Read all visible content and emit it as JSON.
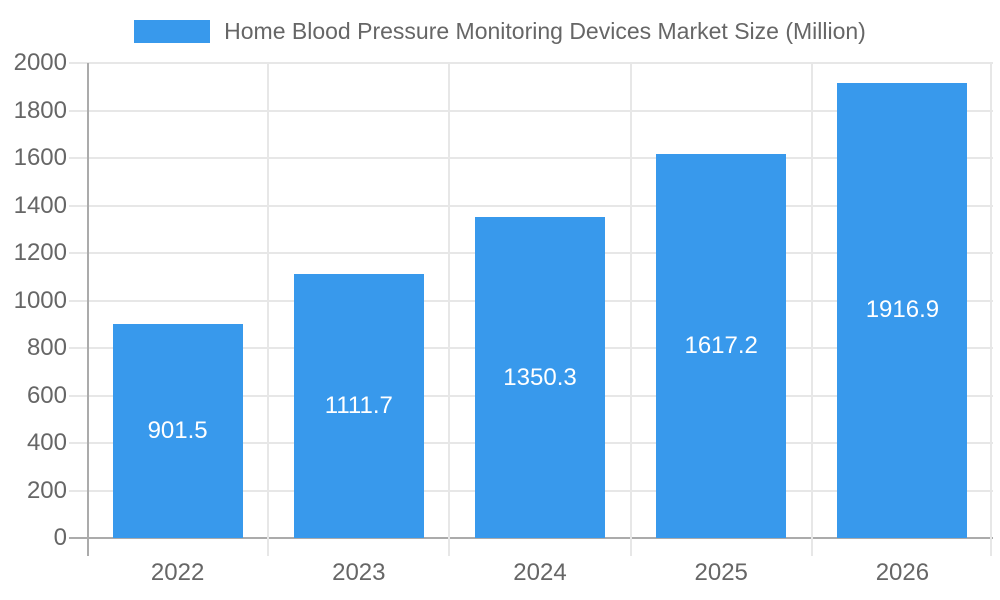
{
  "chart_data": {
    "type": "bar",
    "categories": [
      "2022",
      "2023",
      "2024",
      "2025",
      "2026"
    ],
    "values": [
      901.5,
      1111.7,
      1350.3,
      1617.2,
      1916.9
    ],
    "title": "",
    "xlabel": "",
    "ylabel": "",
    "ylim": [
      0,
      2000
    ],
    "ytick_step": 200,
    "ytick_labels": [
      "0",
      "200",
      "400",
      "600",
      "800",
      "1000",
      "1200",
      "1400",
      "1600",
      "1800",
      "2000"
    ],
    "grid": true,
    "legend_position": "top",
    "legend_label": "Home Blood Pressure Monitoring Devices Market Size (Million)",
    "bar_color": "#3899ec",
    "bar_value_label_color": "#ffffff",
    "axis_text_color": "#666666",
    "gridline_color": "#e7e7e7",
    "axis_line_color": "#ababab"
  }
}
